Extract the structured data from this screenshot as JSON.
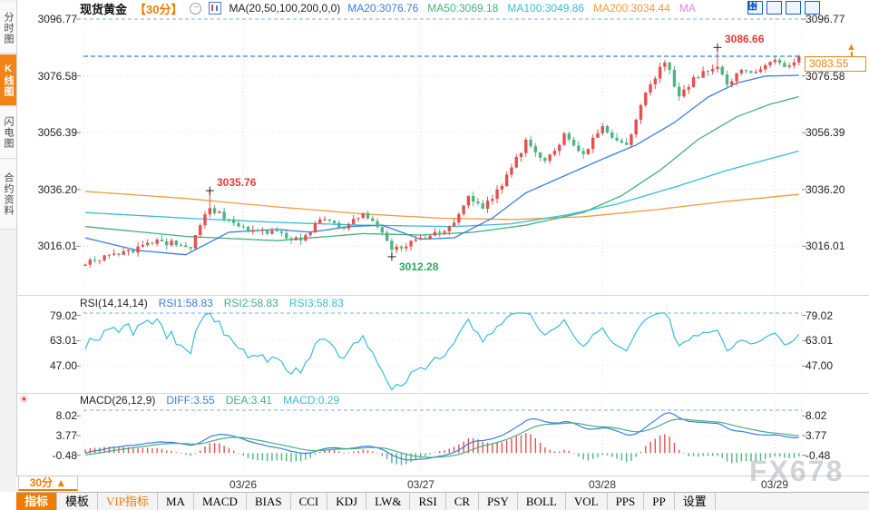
{
  "sidebar": {
    "items": [
      {
        "label": "分时图",
        "active": false
      },
      {
        "label": "K线图",
        "active": true
      },
      {
        "label": "闪电图",
        "active": false
      },
      {
        "label": "合约资料",
        "active": false
      }
    ]
  },
  "header": {
    "symbol": "现货黄金",
    "period": "【30分】",
    "collapse_glyph": "−",
    "ma_title": "MA(20,50,100,200,0,0)",
    "ma_values": [
      {
        "label": "MA20:3076.76",
        "color": "#3b7ce0"
      },
      {
        "label": "MA50:3069.18",
        "color": "#43b07c"
      },
      {
        "label": "MA100:3049.86",
        "color": "#38bcd8"
      },
      {
        "label": "MA200:3034.44",
        "color": "#f59a3e"
      },
      {
        "label": "MA",
        "color": "#e387dd"
      }
    ],
    "icon_names": [
      "pan-chart-icon",
      "y-axis-scale-icon",
      "x-axis-scale-icon",
      "jump-to-latest-icon"
    ]
  },
  "main_chart": {
    "y_labels": [
      "3096.77",
      "3076.58",
      "3056.39",
      "3036.20",
      "3016.01"
    ],
    "price_tag": "3083.55",
    "arrow_glyph": "▲"
  },
  "rsi": {
    "title": "RSI(14,14,14)",
    "values": [
      {
        "label": "RSI1:58.83",
        "color": "#3b7ce0"
      },
      {
        "label": "RSI2:58.83",
        "color": "#43b07c"
      },
      {
        "label": "RSI3:58.83",
        "color": "#38bcd8"
      }
    ],
    "y_labels": [
      "79.02",
      "63.01",
      "47.00"
    ]
  },
  "macd": {
    "title": "MACD(26,12,9)",
    "values": [
      {
        "label": "DIFF:3.55",
        "color": "#3b7ce0"
      },
      {
        "label": "DEA:3.41",
        "color": "#43b07c"
      },
      {
        "label": "MACD:0.29",
        "color": "#38bcd8"
      }
    ],
    "y_labels": [
      "8.02",
      "3.77",
      "-0.48"
    ]
  },
  "x_axis": {
    "dates": [
      "03/26",
      "03/27",
      "03/28",
      "03/29"
    ],
    "period_tab": "30分",
    "period_tab_arrow": "▲"
  },
  "bottom_toolbar": {
    "tabs": [
      {
        "label": "指标",
        "style": "act"
      },
      {
        "label": "模板",
        "style": ""
      },
      {
        "label": "VIP指标",
        "style": "vip"
      },
      {
        "label": "MA",
        "style": ""
      },
      {
        "label": "MACD",
        "style": ""
      },
      {
        "label": "BIAS",
        "style": ""
      },
      {
        "label": "CCI",
        "style": ""
      },
      {
        "label": "KDJ",
        "style": ""
      },
      {
        "label": "LW&",
        "style": ""
      },
      {
        "label": "RSI",
        "style": ""
      },
      {
        "label": "CR",
        "style": ""
      },
      {
        "label": "PSY",
        "style": ""
      },
      {
        "label": "BOLL",
        "style": ""
      },
      {
        "label": "VOL",
        "style": ""
      },
      {
        "label": "PPS",
        "style": ""
      },
      {
        "label": "PP",
        "style": ""
      },
      {
        "label": "设置",
        "style": ""
      }
    ]
  },
  "watermark": "FX678",
  "colors": {
    "up": "#e4504f",
    "down": "#4fb483",
    "ma20": "#3b7ce0",
    "ma50": "#43b07c",
    "ma100": "#38bcd8",
    "ma200": "#f59a3e",
    "rsi_line": "#38bcd8",
    "diff_line": "#3b7ce0",
    "dea_line": "#43b07c",
    "price_line": "#2f80e4",
    "pane_top_line": "#79aee6",
    "accent": "#f07c00",
    "annotation_red": "#e23b3b",
    "annotation_green": "#2ea865"
  },
  "chart_data": {
    "type": "candlestick",
    "title": "现货黄金 30分",
    "visible_bars": 150,
    "prehistory_bars": 40,
    "y_axis_labels": [
      3096.77,
      3076.58,
      3056.39,
      3036.2,
      3016.01
    ],
    "last_price": 3083.55,
    "x_axis_dates": [
      "03/26",
      "03/27",
      "03/28",
      "03/29"
    ],
    "date_bar_indices": [
      33,
      70,
      108,
      144
    ],
    "close_anchors": [
      [
        -40,
        3011
      ],
      [
        -28,
        3006
      ],
      [
        -16,
        3009
      ],
      [
        -8,
        3005.5
      ],
      [
        0,
        3010
      ],
      [
        8,
        3013.5
      ],
      [
        15,
        3018
      ],
      [
        22,
        3016
      ],
      [
        26,
        3030
      ],
      [
        33,
        3022
      ],
      [
        40,
        3020.5
      ],
      [
        45,
        3017.5
      ],
      [
        49,
        3026
      ],
      [
        54,
        3022.5
      ],
      [
        58,
        3027.5
      ],
      [
        62,
        3021
      ],
      [
        64,
        3015
      ],
      [
        70,
        3018.5
      ],
      [
        76,
        3022
      ],
      [
        80,
        3033
      ],
      [
        83,
        3029
      ],
      [
        87,
        3038
      ],
      [
        92,
        3053
      ],
      [
        96,
        3046
      ],
      [
        100,
        3055
      ],
      [
        104,
        3049.5
      ],
      [
        108,
        3058
      ],
      [
        113,
        3052
      ],
      [
        117,
        3070
      ],
      [
        121,
        3082
      ],
      [
        124,
        3069.5
      ],
      [
        128,
        3077
      ],
      [
        132,
        3080.5
      ],
      [
        134,
        3072.5
      ],
      [
        137,
        3079.5
      ],
      [
        140,
        3077
      ],
      [
        143,
        3082.5
      ],
      [
        146,
        3079.5
      ],
      [
        149,
        3083.55
      ]
    ],
    "markers": [
      {
        "index": 26,
        "type": "high",
        "value": "3035.76"
      },
      {
        "index": 64,
        "type": "low",
        "value": "3012.28"
      },
      {
        "index": 132,
        "type": "high",
        "value": "3086.66"
      }
    ],
    "ma": {
      "ma20": {
        "period": 20,
        "value": 3076.76,
        "anchors": [
          [
            0,
            3019
          ],
          [
            11,
            3014.5
          ],
          [
            21,
            3013
          ],
          [
            30,
            3021
          ],
          [
            40,
            3022
          ],
          [
            47,
            3021
          ],
          [
            55,
            3023
          ],
          [
            62,
            3023.5
          ],
          [
            70,
            3018.5
          ],
          [
            77,
            3019
          ],
          [
            85,
            3026
          ],
          [
            92,
            3035
          ],
          [
            100,
            3041
          ],
          [
            108,
            3047
          ],
          [
            115,
            3052
          ],
          [
            123,
            3060
          ],
          [
            130,
            3069
          ],
          [
            136,
            3074
          ],
          [
            142,
            3076.5
          ],
          [
            149,
            3076.76
          ]
        ]
      },
      "ma50": {
        "period": 50,
        "value": 3069.18,
        "anchors": [
          [
            0,
            3023
          ],
          [
            21,
            3019.5
          ],
          [
            40,
            3018
          ],
          [
            58,
            3020.5
          ],
          [
            70,
            3020
          ],
          [
            81,
            3021
          ],
          [
            92,
            3023.5
          ],
          [
            104,
            3028
          ],
          [
            112,
            3034
          ],
          [
            120,
            3043
          ],
          [
            128,
            3054
          ],
          [
            136,
            3062
          ],
          [
            143,
            3066.5
          ],
          [
            149,
            3069.18
          ]
        ]
      },
      "ma100": {
        "period": 100,
        "value": 3049.86,
        "anchors": [
          [
            0,
            3028
          ],
          [
            21,
            3026
          ],
          [
            40,
            3024.5
          ],
          [
            58,
            3023.5
          ],
          [
            77,
            3023
          ],
          [
            89,
            3024
          ],
          [
            100,
            3027
          ],
          [
            111,
            3031
          ],
          [
            123,
            3037
          ],
          [
            134,
            3043
          ],
          [
            149,
            3049.86
          ]
        ]
      },
      "ma200": {
        "period": 200,
        "value": 3034.44,
        "anchors": [
          [
            0,
            3035.5
          ],
          [
            21,
            3033
          ],
          [
            40,
            3030
          ],
          [
            58,
            3027.5
          ],
          [
            74,
            3026
          ],
          [
            89,
            3025.5
          ],
          [
            104,
            3026.5
          ],
          [
            119,
            3029
          ],
          [
            134,
            3032
          ],
          [
            149,
            3034.44
          ]
        ]
      }
    },
    "rsi": {
      "period": 14,
      "current": 58.83,
      "axis_labels": [
        79.02,
        63.01,
        47.0
      ]
    },
    "macd": {
      "params": [
        26,
        12,
        9
      ],
      "diff": 3.55,
      "dea": 3.41,
      "macd": 0.29,
      "axis_labels": [
        8.02,
        3.77,
        -0.48
      ]
    }
  }
}
